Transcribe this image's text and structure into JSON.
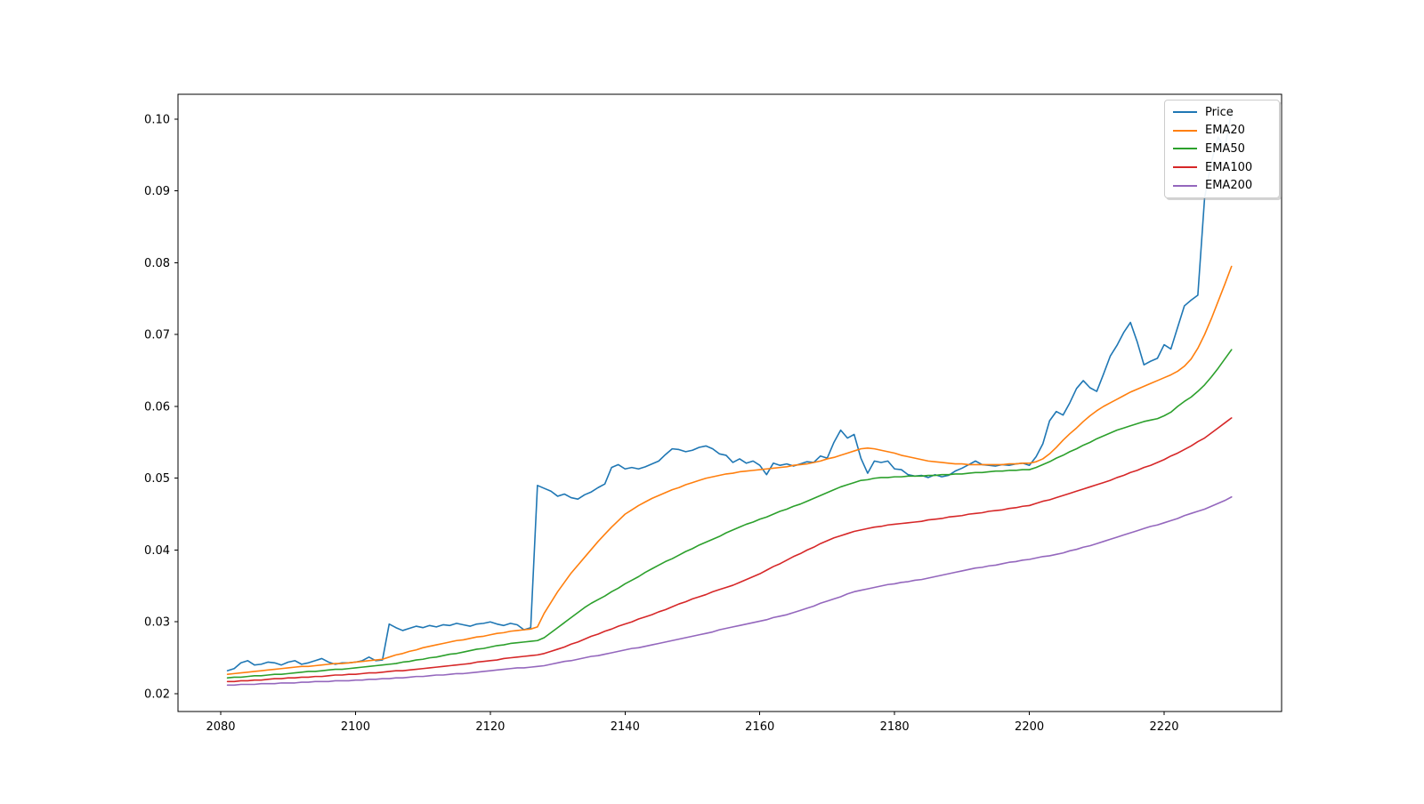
{
  "figure": {
    "background_color": "#ffffff",
    "plot_border_color": "#000000"
  },
  "legend": {
    "position": "upper right",
    "items": [
      {
        "label": "Price",
        "color": "#1f77b4"
      },
      {
        "label": "EMA20",
        "color": "#ff7f0e"
      },
      {
        "label": "EMA50",
        "color": "#2ca02c"
      },
      {
        "label": "EMA100",
        "color": "#d62728"
      },
      {
        "label": "EMA200",
        "color": "#9467bd"
      }
    ]
  },
  "chart_data": {
    "type": "line",
    "title": "",
    "xlabel": "",
    "ylabel": "",
    "grid": false,
    "legend_position": "upper right",
    "xlim": [
      2073.66,
      2237.43
    ],
    "ylim": [
      0.017523,
      0.103467
    ],
    "x_ticks": [
      2080,
      2100,
      2120,
      2140,
      2160,
      2180,
      2200,
      2220
    ],
    "x_tick_labels": [
      "2080",
      "2100",
      "2120",
      "2140",
      "2160",
      "2180",
      "2200",
      "2220"
    ],
    "y_ticks": [
      0.02,
      0.03,
      0.04,
      0.05,
      0.06,
      0.07,
      0.08,
      0.09,
      0.1
    ],
    "y_tick_labels": [
      "0.02",
      "0.03",
      "0.04",
      "0.05",
      "0.06",
      "0.07",
      "0.08",
      "0.09",
      "0.10"
    ],
    "x_start": 2081,
    "x_step": 1,
    "series": [
      {
        "name": "Price",
        "color": "#1f77b4",
        "linewidth": 1.6,
        "values": [
          0.0232,
          0.0235,
          0.0243,
          0.0246,
          0.024,
          0.0241,
          0.0244,
          0.0243,
          0.024,
          0.0244,
          0.0246,
          0.0241,
          0.0243,
          0.0246,
          0.0249,
          0.0244,
          0.0241,
          0.0243,
          0.0243,
          0.0244,
          0.0246,
          0.0251,
          0.0246,
          0.0247,
          0.0297,
          0.0292,
          0.0288,
          0.0291,
          0.0294,
          0.0292,
          0.0295,
          0.0293,
          0.0296,
          0.0295,
          0.0298,
          0.0296,
          0.0294,
          0.0297,
          0.0298,
          0.03,
          0.0297,
          0.0295,
          0.0298,
          0.0296,
          0.0289,
          0.0292,
          0.049,
          0.0486,
          0.0482,
          0.0475,
          0.0478,
          0.0473,
          0.0471,
          0.0477,
          0.0481,
          0.0487,
          0.0492,
          0.0515,
          0.0519,
          0.0513,
          0.0515,
          0.0513,
          0.0516,
          0.052,
          0.0524,
          0.0533,
          0.0541,
          0.054,
          0.0537,
          0.0539,
          0.0543,
          0.0545,
          0.0541,
          0.0534,
          0.0532,
          0.0522,
          0.0527,
          0.0521,
          0.0524,
          0.0518,
          0.0505,
          0.0521,
          0.0518,
          0.052,
          0.0517,
          0.052,
          0.0523,
          0.0522,
          0.0531,
          0.0528,
          0.055,
          0.0567,
          0.0556,
          0.0561,
          0.0528,
          0.0507,
          0.0524,
          0.0522,
          0.0524,
          0.0513,
          0.0512,
          0.0505,
          0.0503,
          0.0504,
          0.0501,
          0.0505,
          0.0502,
          0.0504,
          0.051,
          0.0514,
          0.0519,
          0.0524,
          0.0519,
          0.0518,
          0.0517,
          0.0519,
          0.0518,
          0.052,
          0.0521,
          0.0518,
          0.053,
          0.0548,
          0.058,
          0.0593,
          0.0588,
          0.0605,
          0.0625,
          0.0636,
          0.0626,
          0.0621,
          0.0645,
          0.067,
          0.0685,
          0.0703,
          0.0717,
          0.069,
          0.0658,
          0.0663,
          0.0667,
          0.0686,
          0.068,
          0.071,
          0.074,
          0.0748,
          0.0755,
          0.089,
          0.094,
          0.0975,
          0.096,
          0.101
        ]
      },
      {
        "name": "EMA20",
        "color": "#ff7f0e",
        "linewidth": 1.6,
        "values": [
          0.0227,
          0.0228,
          0.0229,
          0.023,
          0.0231,
          0.0232,
          0.0233,
          0.0234,
          0.0235,
          0.0236,
          0.0237,
          0.0238,
          0.0238,
          0.0239,
          0.024,
          0.0241,
          0.0242,
          0.0242,
          0.0243,
          0.0244,
          0.0245,
          0.0246,
          0.0247,
          0.0248,
          0.0251,
          0.0254,
          0.0256,
          0.0259,
          0.0261,
          0.0264,
          0.0266,
          0.0268,
          0.027,
          0.0272,
          0.0274,
          0.0275,
          0.0277,
          0.0279,
          0.028,
          0.0282,
          0.0284,
          0.0285,
          0.0287,
          0.0288,
          0.0289,
          0.029,
          0.0293,
          0.0312,
          0.0327,
          0.0342,
          0.0355,
          0.0368,
          0.0379,
          0.039,
          0.0401,
          0.0412,
          0.0422,
          0.0432,
          0.0441,
          0.045,
          0.0456,
          0.0462,
          0.0467,
          0.0472,
          0.0476,
          0.048,
          0.0484,
          0.0487,
          0.0491,
          0.0494,
          0.0497,
          0.05,
          0.0502,
          0.0504,
          0.0506,
          0.0507,
          0.0509,
          0.051,
          0.0511,
          0.0512,
          0.0513,
          0.0514,
          0.0515,
          0.0516,
          0.0518,
          0.0519,
          0.052,
          0.0522,
          0.0524,
          0.0527,
          0.0529,
          0.0532,
          0.0535,
          0.0538,
          0.0541,
          0.0542,
          0.0541,
          0.0539,
          0.0537,
          0.0535,
          0.0532,
          0.053,
          0.0528,
          0.0526,
          0.0524,
          0.0523,
          0.0522,
          0.0521,
          0.052,
          0.052,
          0.0519,
          0.0519,
          0.0519,
          0.0519,
          0.0519,
          0.0519,
          0.052,
          0.052,
          0.0521,
          0.0521,
          0.0523,
          0.0527,
          0.0534,
          0.0543,
          0.0553,
          0.0562,
          0.057,
          0.0579,
          0.0587,
          0.0594,
          0.06,
          0.0605,
          0.061,
          0.0615,
          0.062,
          0.0624,
          0.0628,
          0.0632,
          0.0636,
          0.064,
          0.0644,
          0.0649,
          0.0656,
          0.0666,
          0.0681,
          0.07,
          0.0722,
          0.0746,
          0.077,
          0.0795
        ]
      },
      {
        "name": "EMA50",
        "color": "#2ca02c",
        "linewidth": 1.6,
        "values": [
          0.0222,
          0.0223,
          0.0223,
          0.0224,
          0.0225,
          0.0225,
          0.0226,
          0.0227,
          0.0227,
          0.0228,
          0.0229,
          0.023,
          0.0231,
          0.0231,
          0.0232,
          0.0233,
          0.0234,
          0.0234,
          0.0235,
          0.0236,
          0.0237,
          0.0238,
          0.0239,
          0.024,
          0.0241,
          0.0242,
          0.0244,
          0.0245,
          0.0247,
          0.0248,
          0.025,
          0.0251,
          0.0253,
          0.0255,
          0.0256,
          0.0258,
          0.026,
          0.0262,
          0.0263,
          0.0265,
          0.0267,
          0.0268,
          0.027,
          0.0271,
          0.0272,
          0.0273,
          0.0274,
          0.0278,
          0.0285,
          0.0292,
          0.0299,
          0.0306,
          0.0313,
          0.032,
          0.0326,
          0.0331,
          0.0336,
          0.0342,
          0.0347,
          0.0353,
          0.0358,
          0.0363,
          0.0369,
          0.0374,
          0.0379,
          0.0384,
          0.0388,
          0.0393,
          0.0398,
          0.0402,
          0.0407,
          0.0411,
          0.0415,
          0.0419,
          0.0424,
          0.0428,
          0.0432,
          0.0436,
          0.0439,
          0.0443,
          0.0446,
          0.045,
          0.0454,
          0.0457,
          0.0461,
          0.0464,
          0.0468,
          0.0472,
          0.0476,
          0.048,
          0.0484,
          0.0488,
          0.0491,
          0.0494,
          0.0497,
          0.0498,
          0.05,
          0.0501,
          0.0501,
          0.0502,
          0.0502,
          0.0503,
          0.0503,
          0.0503,
          0.0504,
          0.0504,
          0.0505,
          0.0505,
          0.0506,
          0.0506,
          0.0507,
          0.0508,
          0.0508,
          0.0509,
          0.051,
          0.051,
          0.0511,
          0.0511,
          0.0512,
          0.0512,
          0.0515,
          0.0519,
          0.0523,
          0.0528,
          0.0532,
          0.0537,
          0.0541,
          0.0546,
          0.055,
          0.0555,
          0.0559,
          0.0563,
          0.0567,
          0.057,
          0.0573,
          0.0576,
          0.0579,
          0.0581,
          0.0583,
          0.0587,
          0.0592,
          0.06,
          0.0607,
          0.0613,
          0.0621,
          0.063,
          0.0641,
          0.0653,
          0.0666,
          0.0679
        ]
      },
      {
        "name": "EMA100",
        "color": "#d62728",
        "linewidth": 1.6,
        "values": [
          0.0217,
          0.0217,
          0.0218,
          0.0218,
          0.0219,
          0.0219,
          0.022,
          0.0221,
          0.0221,
          0.0222,
          0.0222,
          0.0223,
          0.0223,
          0.0224,
          0.0224,
          0.0225,
          0.0226,
          0.0226,
          0.0227,
          0.0227,
          0.0228,
          0.0229,
          0.0229,
          0.023,
          0.0231,
          0.0232,
          0.0232,
          0.0233,
          0.0234,
          0.0235,
          0.0236,
          0.0237,
          0.0238,
          0.0239,
          0.024,
          0.0241,
          0.0242,
          0.0244,
          0.0245,
          0.0246,
          0.0247,
          0.0249,
          0.025,
          0.0251,
          0.0252,
          0.0253,
          0.0254,
          0.0256,
          0.0259,
          0.0262,
          0.0265,
          0.0269,
          0.0272,
          0.0276,
          0.028,
          0.0283,
          0.0287,
          0.029,
          0.0294,
          0.0297,
          0.03,
          0.0304,
          0.0307,
          0.031,
          0.0314,
          0.0317,
          0.0321,
          0.0325,
          0.0328,
          0.0332,
          0.0335,
          0.0338,
          0.0342,
          0.0345,
          0.0348,
          0.0351,
          0.0355,
          0.0359,
          0.0363,
          0.0367,
          0.0372,
          0.0377,
          0.0381,
          0.0386,
          0.0391,
          0.0395,
          0.04,
          0.0404,
          0.0409,
          0.0413,
          0.0417,
          0.042,
          0.0423,
          0.0426,
          0.0428,
          0.043,
          0.0432,
          0.0433,
          0.0435,
          0.0436,
          0.0437,
          0.0438,
          0.0439,
          0.044,
          0.0442,
          0.0443,
          0.0444,
          0.0446,
          0.0447,
          0.0448,
          0.045,
          0.0451,
          0.0452,
          0.0454,
          0.0455,
          0.0456,
          0.0458,
          0.0459,
          0.0461,
          0.0462,
          0.0465,
          0.0468,
          0.047,
          0.0473,
          0.0476,
          0.0479,
          0.0482,
          0.0485,
          0.0488,
          0.0491,
          0.0494,
          0.0497,
          0.0501,
          0.0504,
          0.0508,
          0.0511,
          0.0515,
          0.0518,
          0.0522,
          0.0526,
          0.0531,
          0.0535,
          0.054,
          0.0545,
          0.0551,
          0.0556,
          0.0563,
          0.057,
          0.0577,
          0.0584
        ]
      },
      {
        "name": "EMA200",
        "color": "#9467bd",
        "linewidth": 1.6,
        "values": [
          0.0212,
          0.0212,
          0.0213,
          0.0213,
          0.0213,
          0.0214,
          0.0214,
          0.0214,
          0.0215,
          0.0215,
          0.0215,
          0.0216,
          0.0216,
          0.0217,
          0.0217,
          0.0217,
          0.0218,
          0.0218,
          0.0218,
          0.0219,
          0.0219,
          0.022,
          0.022,
          0.0221,
          0.0221,
          0.0222,
          0.0222,
          0.0223,
          0.0224,
          0.0224,
          0.0225,
          0.0226,
          0.0226,
          0.0227,
          0.0228,
          0.0228,
          0.0229,
          0.023,
          0.0231,
          0.0232,
          0.0233,
          0.0234,
          0.0235,
          0.0236,
          0.0236,
          0.0237,
          0.0238,
          0.0239,
          0.0241,
          0.0243,
          0.0245,
          0.0246,
          0.0248,
          0.025,
          0.0252,
          0.0253,
          0.0255,
          0.0257,
          0.0259,
          0.0261,
          0.0263,
          0.0264,
          0.0266,
          0.0268,
          0.027,
          0.0272,
          0.0274,
          0.0276,
          0.0278,
          0.028,
          0.0282,
          0.0284,
          0.0286,
          0.0289,
          0.0291,
          0.0293,
          0.0295,
          0.0297,
          0.0299,
          0.0301,
          0.0303,
          0.0306,
          0.0308,
          0.031,
          0.0313,
          0.0316,
          0.0319,
          0.0322,
          0.0326,
          0.0329,
          0.0332,
          0.0335,
          0.0339,
          0.0342,
          0.0344,
          0.0346,
          0.0348,
          0.035,
          0.0352,
          0.0353,
          0.0355,
          0.0356,
          0.0358,
          0.0359,
          0.0361,
          0.0363,
          0.0365,
          0.0367,
          0.0369,
          0.0371,
          0.0373,
          0.0375,
          0.0376,
          0.0378,
          0.0379,
          0.0381,
          0.0383,
          0.0384,
          0.0386,
          0.0387,
          0.0389,
          0.0391,
          0.0392,
          0.0394,
          0.0396,
          0.0399,
          0.0401,
          0.0404,
          0.0406,
          0.0409,
          0.0412,
          0.0415,
          0.0418,
          0.0421,
          0.0424,
          0.0427,
          0.043,
          0.0433,
          0.0435,
          0.0438,
          0.0441,
          0.0444,
          0.0448,
          0.0451,
          0.0454,
          0.0457,
          0.0461,
          0.0465,
          0.0469,
          0.0474
        ]
      }
    ]
  }
}
